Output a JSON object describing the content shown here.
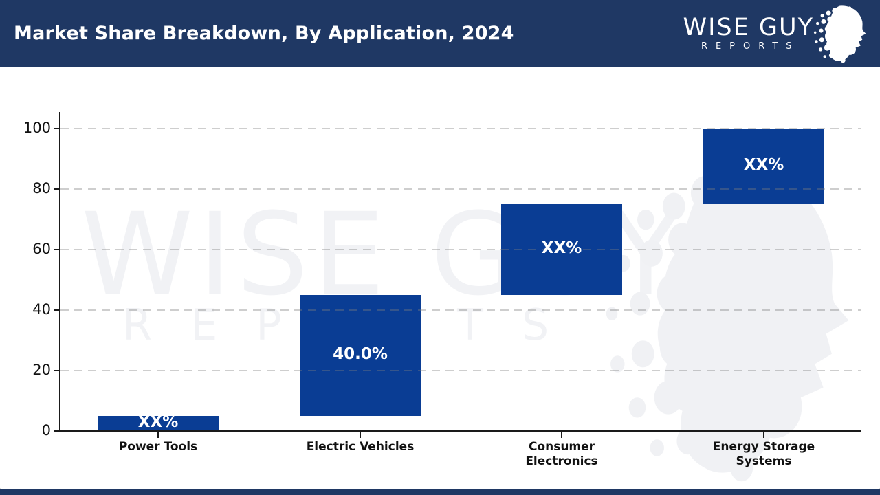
{
  "header": {
    "title": "Market Share Breakdown, By Application, 2024",
    "bg_color": "#1F3864",
    "logo": {
      "line1": "WISE GUY",
      "line2": "REPORTS"
    }
  },
  "watermark": {
    "line1": "WISE GUY",
    "line2": "REPORTS"
  },
  "footer": {
    "bg_color": "#1F3864"
  },
  "chart_data": {
    "type": "bar",
    "subtype": "waterfall",
    "title": "Market Share Breakdown, By Application, 2024",
    "categories": [
      "Power Tools",
      "Electric Vehicles",
      "Consumer\nElectronics",
      "Energy Storage\nSystems"
    ],
    "segments": [
      {
        "category": "Power Tools",
        "start": 0,
        "end": 5,
        "value": 5,
        "label": "XX%"
      },
      {
        "category": "Electric Vehicles",
        "start": 5,
        "end": 45,
        "value": 40,
        "label": "40.0%"
      },
      {
        "category": "Consumer Electronics",
        "start": 45,
        "end": 75,
        "value": 30,
        "label": "XX%"
      },
      {
        "category": "Energy Storage Systems",
        "start": 75,
        "end": 100,
        "value": 25,
        "label": "XX%"
      }
    ],
    "yticks": [
      0,
      20,
      40,
      60,
      80,
      100
    ],
    "ylim": [
      0,
      105
    ],
    "grid": "horizontal-dashed",
    "legend": "none",
    "bar_color": "#0A3D94",
    "bar_label_color": "#ffffff",
    "axis_color": "#1a1a1a"
  }
}
